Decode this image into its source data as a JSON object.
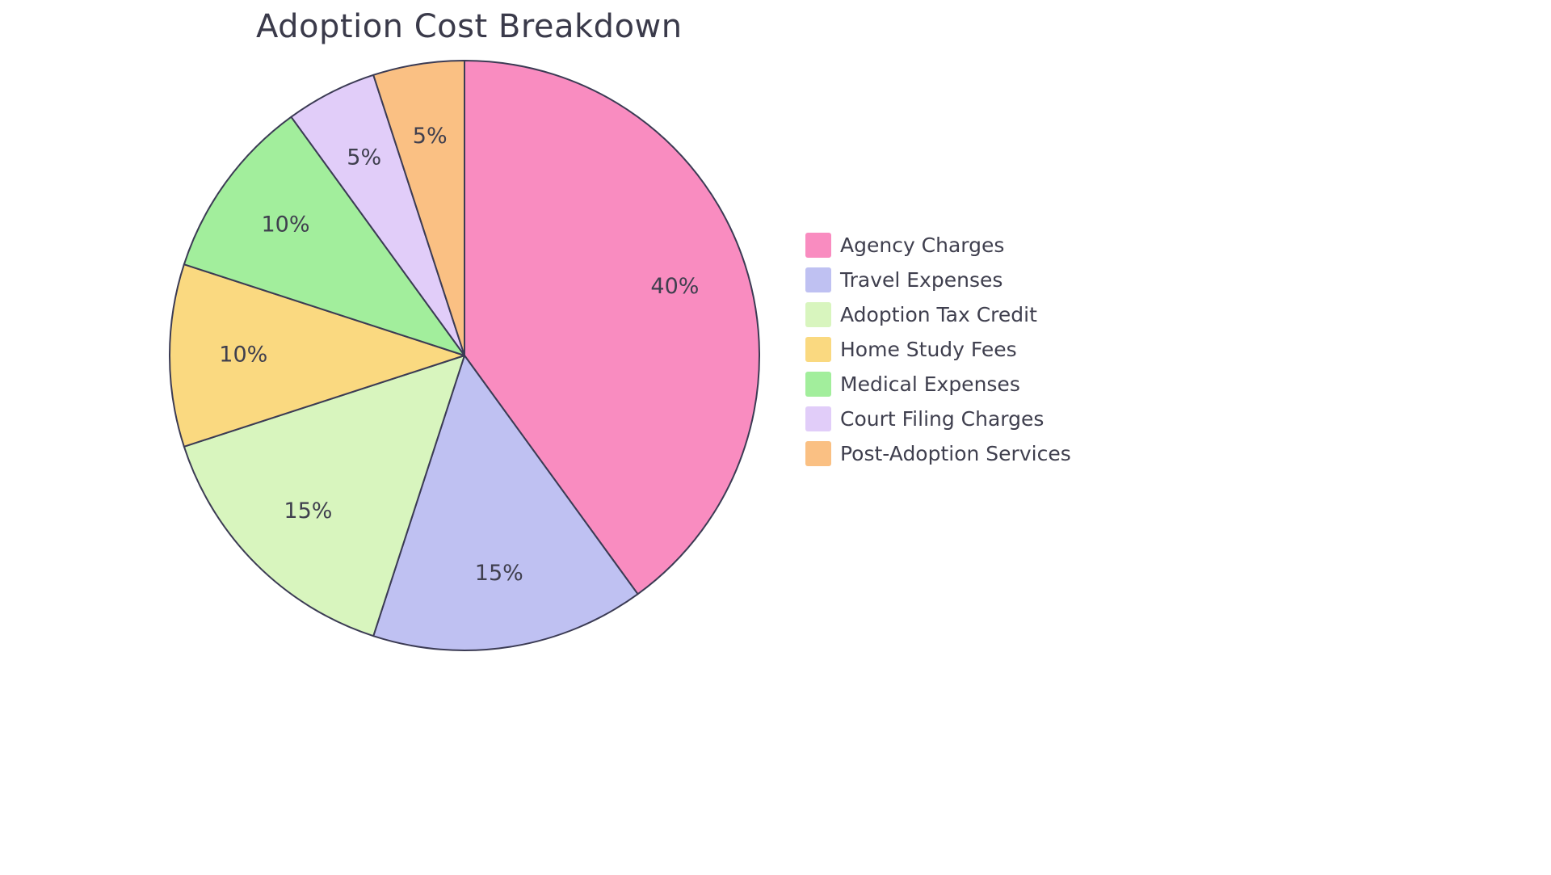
{
  "chart_data": {
    "type": "pie",
    "title": "Adoption Cost Breakdown",
    "series": [
      {
        "label": "Agency Charges",
        "value": 40,
        "color": "#F98CC0"
      },
      {
        "label": "Travel Expenses",
        "value": 15,
        "color": "#BFC1F2"
      },
      {
        "label": "Adoption Tax Credit",
        "value": 15,
        "color": "#D8F5BE"
      },
      {
        "label": "Home Study Fees",
        "value": 10,
        "color": "#FAD980"
      },
      {
        "label": "Medical Expenses",
        "value": 10,
        "color": "#A2EE9C"
      },
      {
        "label": "Court Filing Charges",
        "value": 5,
        "color": "#E1CDF9"
      },
      {
        "label": "Post-Adoption Services",
        "value": 5,
        "color": "#FAC083"
      }
    ],
    "slice_labels": [
      "40%",
      "15%",
      "15%",
      "10%",
      "10%",
      "5%",
      "5%"
    ],
    "start_angle_deg": 0,
    "direction": "clockwise",
    "stroke_color": "#3B3B54",
    "label_color": "#3F3F4E",
    "legend_position": "right",
    "background_color": "#FFFFFF"
  }
}
